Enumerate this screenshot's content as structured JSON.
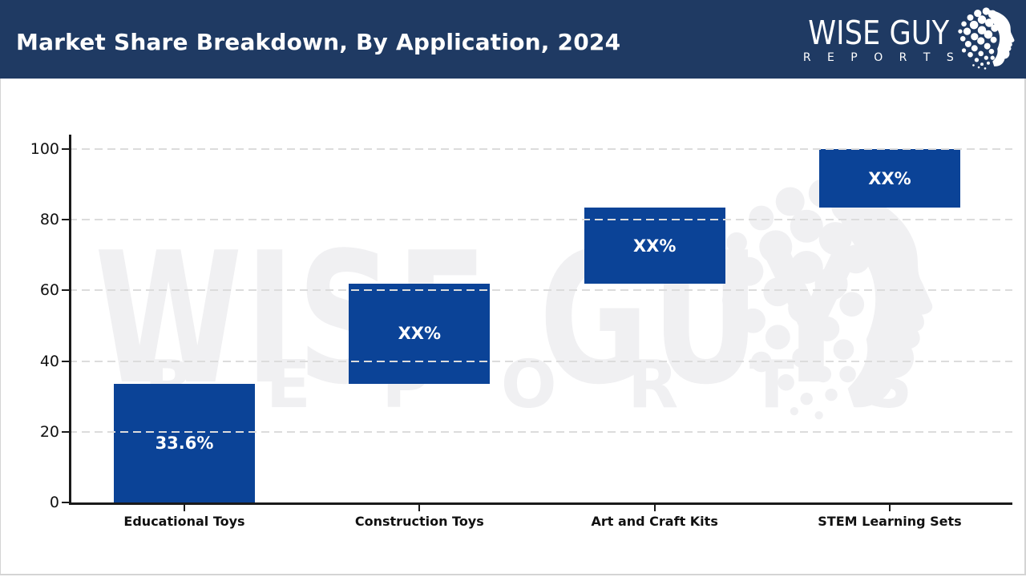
{
  "header": {
    "title": "Market Share Breakdown, By Application, 2024",
    "logo": {
      "line1": "WISE GUY",
      "line2": "R E P O R T S"
    }
  },
  "watermark": {
    "line1": "WISE GUY",
    "line2": "R E P O R T S"
  },
  "chart_data": {
    "type": "bar",
    "subtype": "waterfall",
    "title": "Market Share Breakdown, By Application, 2024",
    "categories": [
      "Educational Toys",
      "Construction Toys",
      "Art and Craft Kits",
      "STEM Learning Sets"
    ],
    "segments": [
      {
        "category": "Educational Toys",
        "start": 0,
        "end": 33.6,
        "value_label": "33.6%"
      },
      {
        "category": "Construction Toys",
        "start": 33.6,
        "end": 61.9,
        "value_label": "XX%"
      },
      {
        "category": "Art and Craft Kits",
        "start": 61.9,
        "end": 83.4,
        "value_label": "XX%"
      },
      {
        "category": "STEM Learning Sets",
        "start": 83.4,
        "end": 100,
        "value_label": "XX%"
      }
    ],
    "y_ticks": [
      0,
      20,
      40,
      60,
      80,
      100
    ],
    "ylim": [
      0,
      100
    ],
    "xlabel": "",
    "ylabel": "",
    "grid": "horizontal-dashed-over-bars",
    "legend": "none",
    "bar_color": "#0b4397",
    "bar_label_color": "#ffffff"
  },
  "colors": {
    "header_bg": "#1f3a63",
    "bar": "#0b4397",
    "grid": "#dcdcdc",
    "axis": "#1a1a1a",
    "watermark": "#f0f0f2",
    "page_border": "#d4d4d4"
  }
}
